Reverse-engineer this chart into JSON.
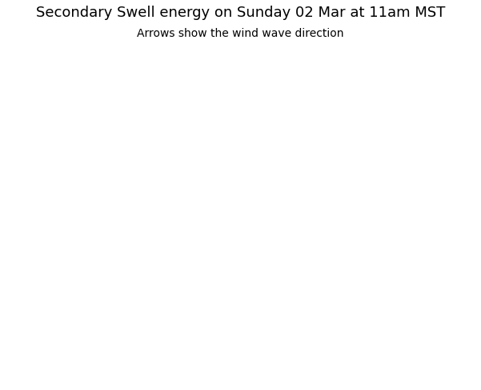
{
  "title": "Secondary Swell energy on Sunday 02 Mar at 11am MST",
  "subtitle": "Arrows show the wind wave direction",
  "title_fontsize": 13,
  "subtitle_fontsize": 10,
  "background_color": "#ffffff",
  "map_bg": "#000000",
  "land_color_light": "#b0b0b0",
  "land_color_dark": "#000000",
  "ocean_color": "#000000",
  "border_color": "#000000",
  "fig_width": 6.01,
  "fig_height": 4.88,
  "dpi": 100
}
